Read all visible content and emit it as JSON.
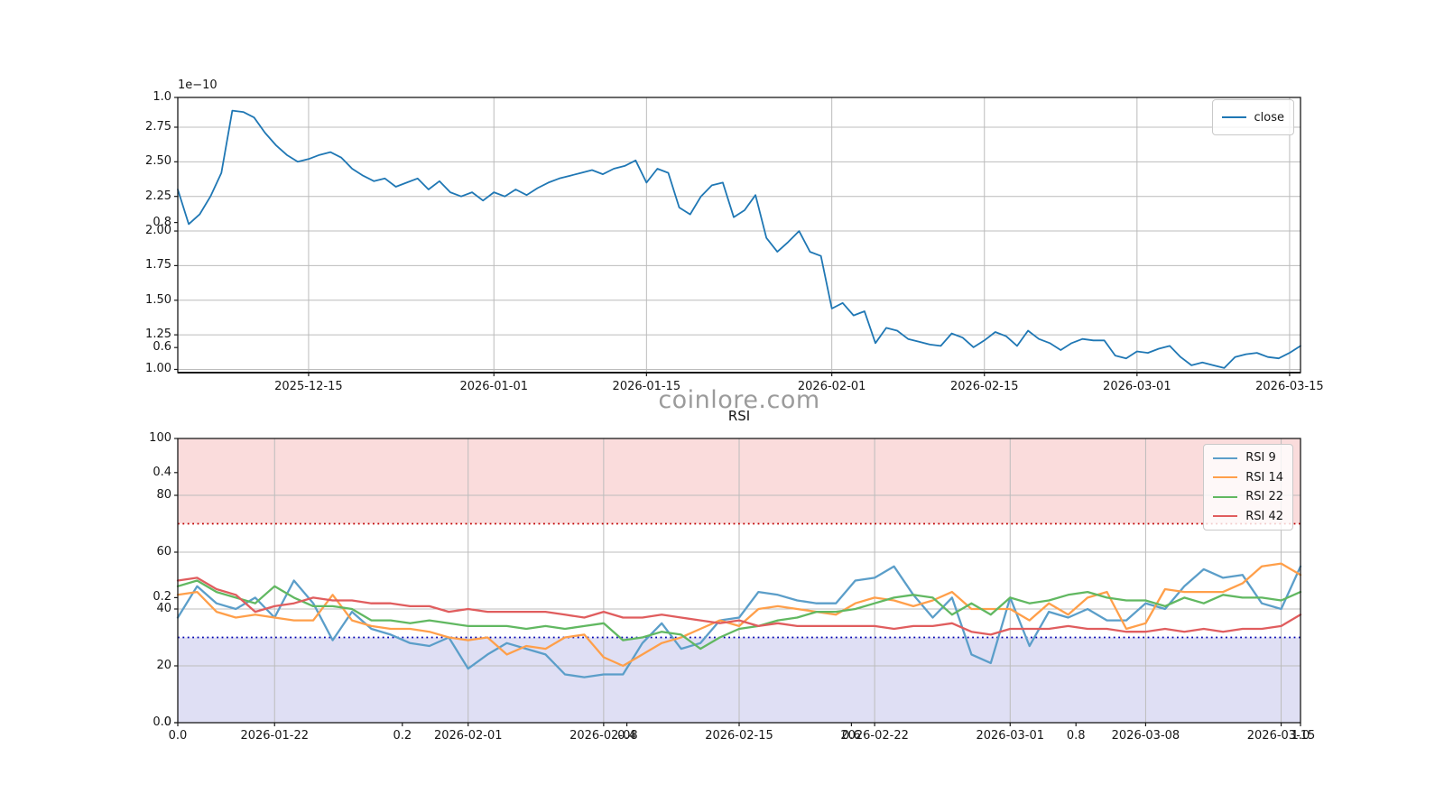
{
  "watermark": "coinlore.com",
  "overlay_axis": {
    "y_tick_labels": [
      "1.0",
      "0.8",
      "0.6",
      "0.4",
      "0.2",
      "0.0"
    ],
    "x_tick_labels": [
      "0.0",
      "0.2",
      "0.4",
      "0.6",
      "0.8",
      "1.0"
    ]
  },
  "colors": {
    "close": "#1f77b4",
    "rsi9": "#5b9ec9",
    "rsi14": "#ff9f4a",
    "rsi22": "#61b861",
    "rsi42": "#e05d5e",
    "band_overbought": "#fadcdc",
    "band_oversold": "#dfdff4",
    "hline_overbought": "#c00000",
    "hline_oversold": "#0000b0",
    "grid": "#bcbcbc",
    "spine": "#1a1a1a"
  },
  "chart_data": [
    {
      "type": "line",
      "title": "",
      "offset_text": "1e−10",
      "legend_position": "upper right",
      "grid": true,
      "start_date": "2025-12-03",
      "ylim": [
        0.977,
        2.965
      ],
      "y_ticks": [
        1.0,
        1.25,
        1.5,
        1.75,
        2.0,
        2.25,
        2.5,
        2.75
      ],
      "y_tick_labels": [
        "1.00",
        "1.25",
        "1.50",
        "1.75",
        "2.00",
        "2.25",
        "2.50",
        "2.75"
      ],
      "x_tick_days": [
        12,
        29,
        43,
        60,
        74,
        88,
        102
      ],
      "x_tick_labels": [
        "2025-12-15",
        "2026-01-01",
        "2026-01-15",
        "2026-02-01",
        "2026-02-15",
        "2026-03-01",
        "2026-03-15"
      ],
      "series": [
        {
          "name": "close",
          "color_key": "close",
          "values": [
            2.3,
            2.05,
            2.12,
            2.25,
            2.42,
            2.87,
            2.86,
            2.82,
            2.71,
            2.62,
            2.55,
            2.5,
            2.52,
            2.55,
            2.57,
            2.53,
            2.45,
            2.4,
            2.36,
            2.38,
            2.32,
            2.35,
            2.38,
            2.3,
            2.36,
            2.28,
            2.25,
            2.28,
            2.22,
            2.28,
            2.25,
            2.3,
            2.26,
            2.31,
            2.35,
            2.38,
            2.4,
            2.42,
            2.44,
            2.41,
            2.45,
            2.47,
            2.51,
            2.35,
            2.45,
            2.42,
            2.17,
            2.12,
            2.25,
            2.33,
            2.35,
            2.1,
            2.15,
            2.26,
            1.95,
            1.85,
            1.92,
            2.0,
            1.85,
            1.82,
            1.44,
            1.48,
            1.39,
            1.42,
            1.19,
            1.3,
            1.28,
            1.22,
            1.2,
            1.18,
            1.17,
            1.26,
            1.23,
            1.16,
            1.21,
            1.27,
            1.24,
            1.17,
            1.28,
            1.22,
            1.19,
            1.14,
            1.19,
            1.22,
            1.21,
            1.21,
            1.1,
            1.08,
            1.13,
            1.12,
            1.15,
            1.17,
            1.09,
            1.03,
            1.05,
            1.03,
            1.01,
            1.09,
            1.11,
            1.12,
            1.09,
            1.08,
            1.12,
            1.17
          ]
        }
      ]
    },
    {
      "type": "line",
      "title": "RSI",
      "legend_position": "upper right",
      "grid": true,
      "start_date": "2026-01-17",
      "ylim": [
        0,
        100
      ],
      "y_ticks": [
        0,
        20,
        40,
        60,
        80,
        100
      ],
      "y_tick_labels": [
        "0",
        "20",
        "40",
        "60",
        "80",
        "100"
      ],
      "x_tick_days": [
        5,
        15,
        22,
        29,
        36,
        43,
        50,
        57
      ],
      "x_tick_labels": [
        "2026-01-22",
        "2026-02-01",
        "2026-02-08",
        "2026-02-15",
        "2026-02-22",
        "2026-03-01",
        "2026-03-08",
        "2026-03-15"
      ],
      "bands": [
        {
          "from": 70,
          "to": 100,
          "color_key": "band_overbought"
        },
        {
          "from": 0,
          "to": 30,
          "color_key": "band_oversold"
        }
      ],
      "hlines": [
        {
          "y": 70,
          "color_key": "hline_overbought",
          "style": "dotted"
        },
        {
          "y": 30,
          "color_key": "hline_oversold",
          "style": "dotted"
        }
      ],
      "series": [
        {
          "name": "RSI 9",
          "color_key": "rsi9",
          "values": [
            37,
            48,
            42,
            40,
            44,
            37,
            50,
            42,
            29,
            39,
            33,
            31,
            28,
            27,
            30,
            19,
            24,
            28,
            26,
            24,
            17,
            16,
            17,
            17,
            28,
            35,
            26,
            28,
            36,
            37,
            46,
            45,
            43,
            42,
            42,
            50,
            51,
            55,
            45,
            37,
            44,
            24,
            21,
            44,
            27,
            39,
            37,
            40,
            36,
            36,
            42,
            40,
            48,
            54,
            51,
            52,
            42,
            40,
            55
          ]
        },
        {
          "name": "RSI 14",
          "color_key": "rsi14",
          "values": [
            45,
            46,
            39,
            37,
            38,
            37,
            36,
            36,
            45,
            36,
            34,
            33,
            33,
            32,
            30,
            29,
            30,
            24,
            27,
            26,
            30,
            31,
            23,
            20,
            24,
            28,
            30,
            33,
            36,
            34,
            40,
            41,
            40,
            39,
            38,
            42,
            44,
            43,
            41,
            43,
            46,
            40,
            40,
            40,
            36,
            42,
            38,
            44,
            46,
            33,
            35,
            47,
            46,
            46,
            46,
            49,
            55,
            56,
            52
          ]
        },
        {
          "name": "RSI 22",
          "color_key": "rsi22",
          "values": [
            48,
            50,
            46,
            44,
            42,
            48,
            44,
            41,
            41,
            40,
            36,
            36,
            35,
            36,
            35,
            34,
            34,
            34,
            33,
            34,
            33,
            34,
            35,
            29,
            30,
            32,
            31,
            26,
            30,
            33,
            34,
            36,
            37,
            39,
            39,
            40,
            42,
            44,
            45,
            44,
            38,
            42,
            38,
            44,
            42,
            43,
            45,
            46,
            44,
            43,
            43,
            41,
            44,
            42,
            45,
            44,
            44,
            43,
            46
          ]
        },
        {
          "name": "RSI 42",
          "color_key": "rsi42",
          "values": [
            50,
            51,
            47,
            45,
            39,
            41,
            42,
            44,
            43,
            43,
            42,
            42,
            41,
            41,
            39,
            40,
            39,
            39,
            39,
            39,
            38,
            37,
            39,
            37,
            37,
            38,
            37,
            36,
            35,
            36,
            34,
            35,
            34,
            34,
            34,
            34,
            34,
            33,
            34,
            34,
            35,
            32,
            31,
            33,
            33,
            33,
            34,
            33,
            33,
            32,
            32,
            33,
            32,
            33,
            32,
            33,
            33,
            34,
            38
          ]
        }
      ]
    }
  ]
}
